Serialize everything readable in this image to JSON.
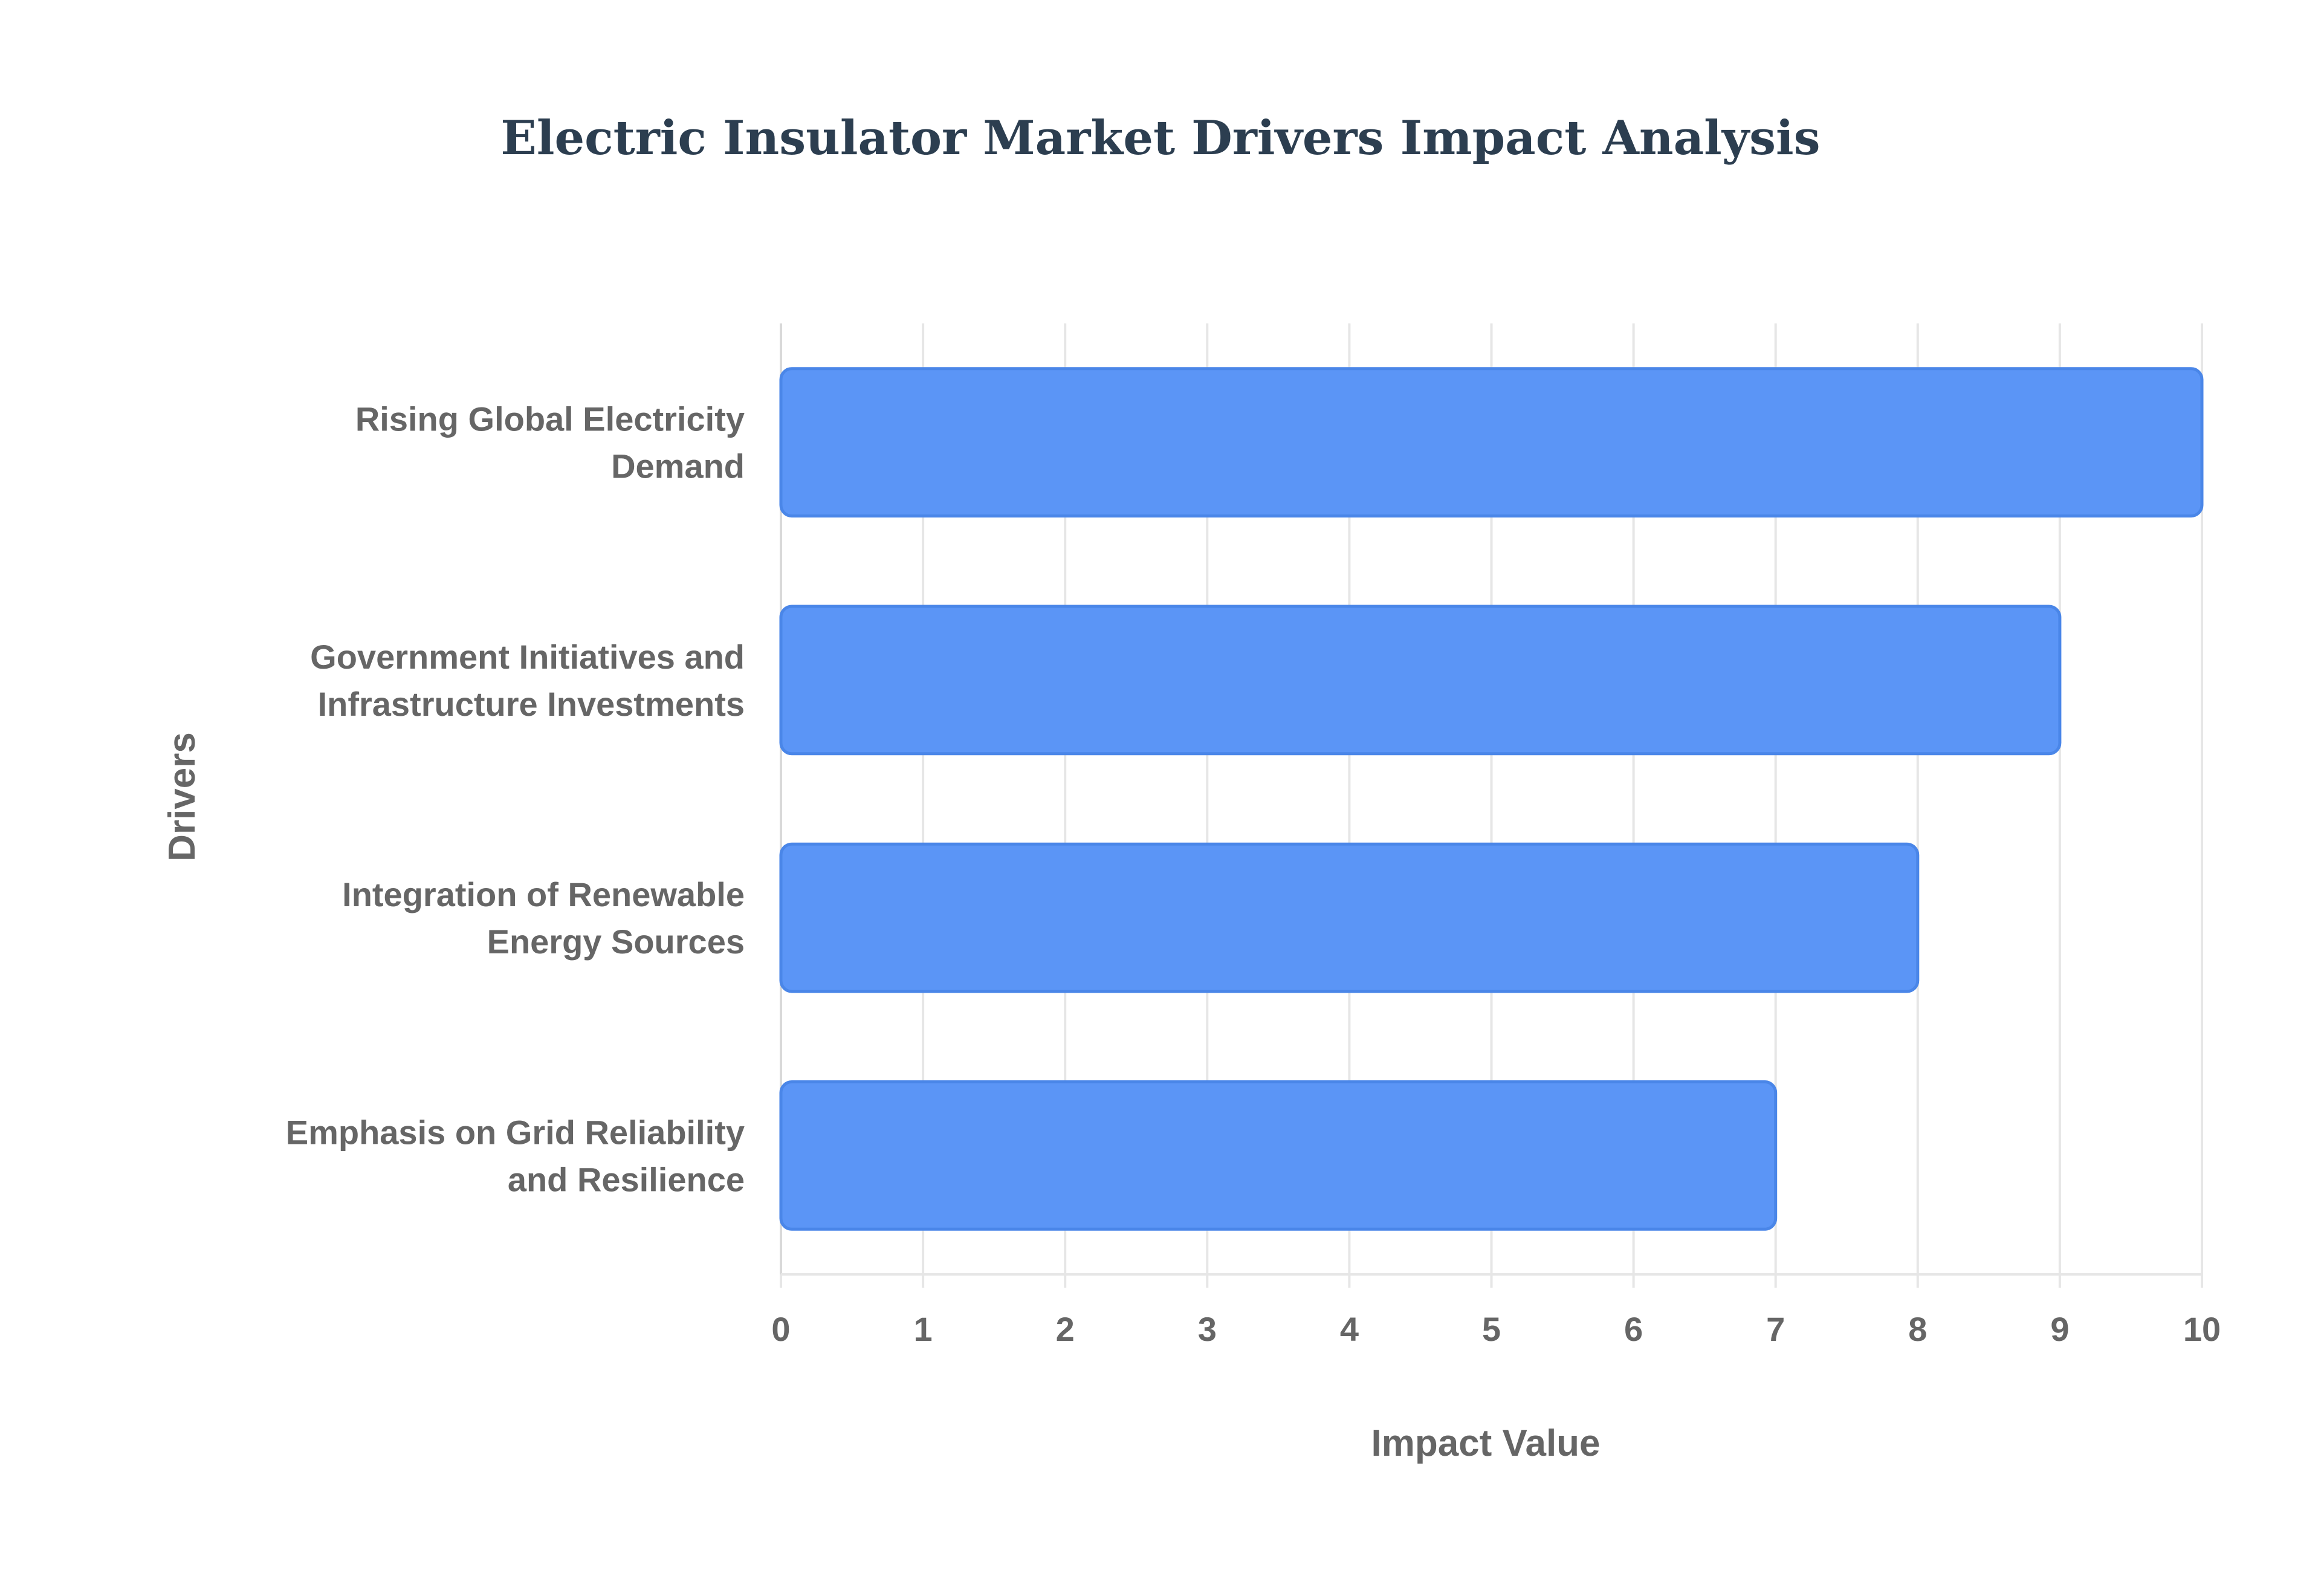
{
  "chart_data": {
    "type": "bar",
    "orientation": "horizontal",
    "title": "Electric Insulator Market Drivers Impact Analysis",
    "xlabel": "Impact Value",
    "ylabel": "Drivers",
    "categories": [
      [
        "Rising Global Electricity",
        "Demand"
      ],
      [
        "Government Initiatives and",
        "Infrastructure Investments"
      ],
      [
        "Integration of Renewable",
        "Energy Sources"
      ],
      [
        "Emphasis on Grid Reliability",
        "and Resilience"
      ]
    ],
    "values": [
      10,
      9,
      8,
      7
    ],
    "xlim": [
      0,
      10
    ],
    "xticks": [
      0,
      1,
      2,
      3,
      4,
      5,
      6,
      7,
      8,
      9,
      10
    ],
    "grid": true,
    "legend": "none",
    "colors": {
      "bar_fill": "#5b95f6",
      "bar_stroke": "#4a86e8",
      "title": "#2c3e50",
      "text": "#666666",
      "grid": "#e6e6e6"
    }
  }
}
